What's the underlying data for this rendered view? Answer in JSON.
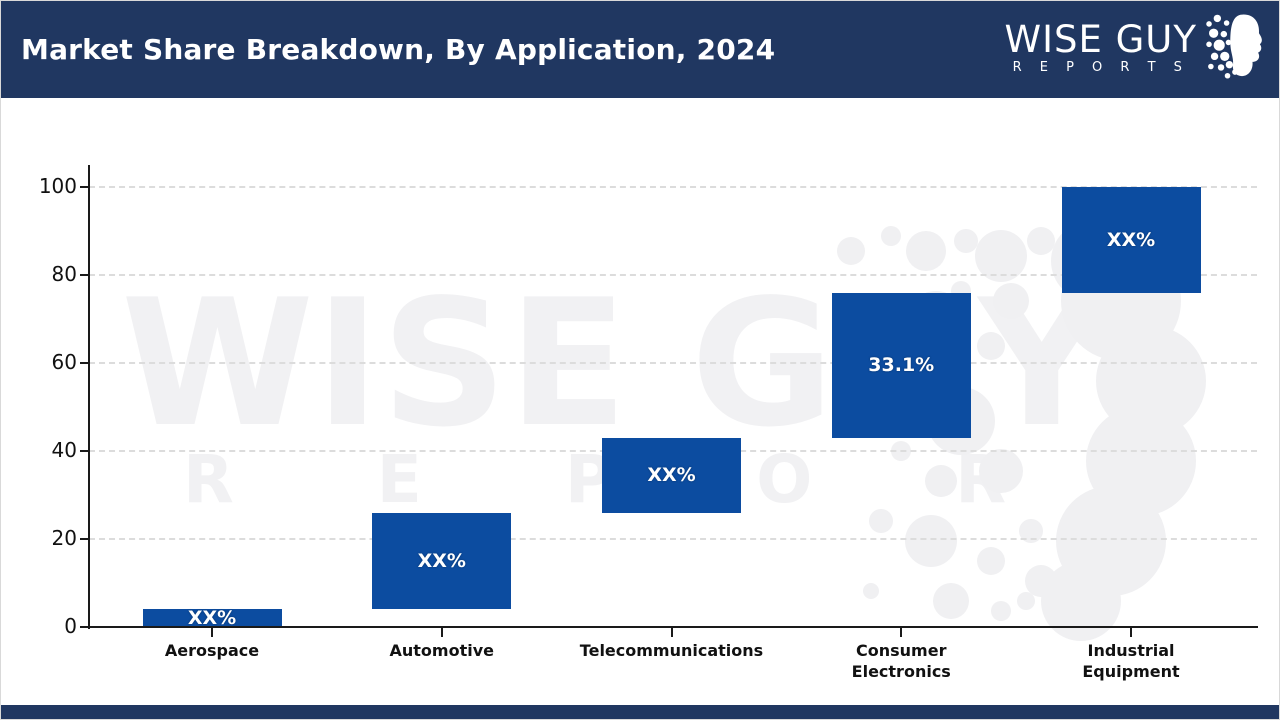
{
  "header": {
    "title": "Market Share Breakdown, By Application, 2024",
    "logo": {
      "line1": "WISE GUY",
      "line2": "R E P O R T S"
    }
  },
  "watermark": {
    "line1": "WISE GUY",
    "line2": "R E P O R T S"
  },
  "colors": {
    "header_bg": "#203761",
    "footer_bg": "#203761",
    "bar": "#0c4ca0",
    "grid": "#dcdcdc",
    "axis": "#1a1a1a",
    "bar_label": "#ffffff",
    "tick_label": "#111111",
    "watermark": "#f1f1f3"
  },
  "chart_data": {
    "type": "bar",
    "subtype": "waterfall",
    "title": "Market Share Breakdown, By Application, 2024",
    "categories": [
      "Aerospace",
      "Automotive",
      "Telecommunications",
      "Consumer Electronics",
      "Industrial Equipment"
    ],
    "bar_labels": [
      "XX%",
      "XX%",
      "XX%",
      "33.1%",
      "XX%"
    ],
    "segments": [
      {
        "start": 0.0,
        "end": 4.0
      },
      {
        "start": 4.0,
        "end": 26.0
      },
      {
        "start": 26.0,
        "end": 42.9
      },
      {
        "start": 42.9,
        "end": 76.0
      },
      {
        "start": 76.0,
        "end": 100.0
      }
    ],
    "values_pct": [
      4.0,
      22.0,
      16.9,
      33.1,
      24.0
    ],
    "xlabel": "",
    "ylabel": "",
    "ylim": [
      0,
      105
    ],
    "yticks": [
      0,
      20,
      40,
      60,
      80,
      100
    ],
    "grid": "horizontal-dashed",
    "legend": null
  }
}
